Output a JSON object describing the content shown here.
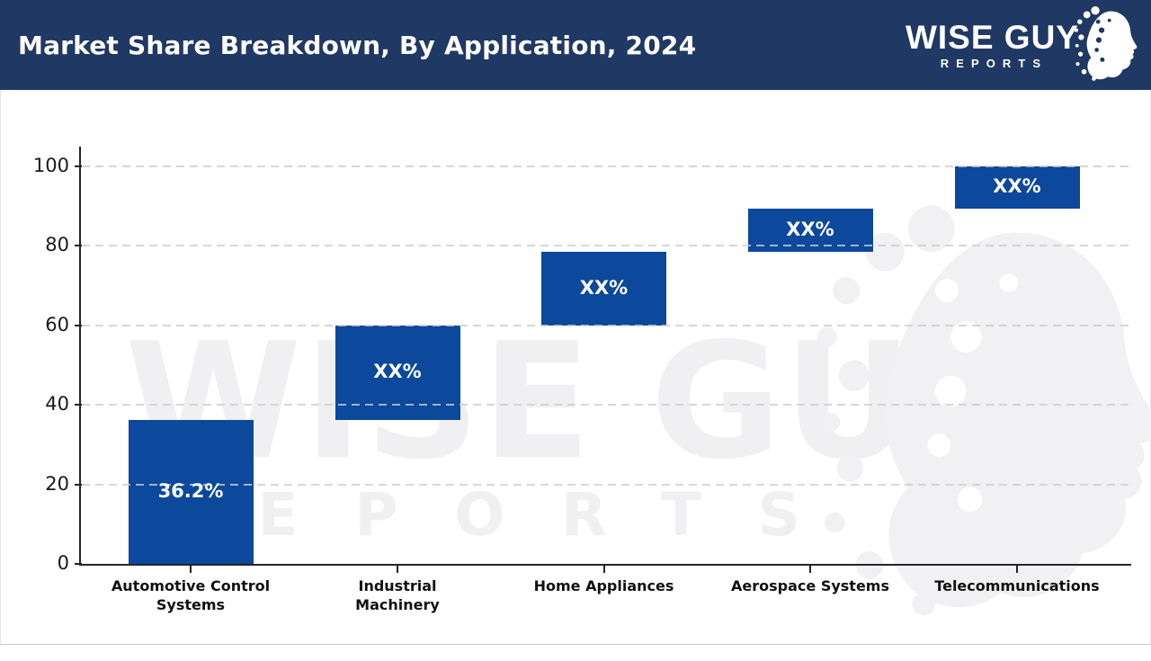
{
  "header": {
    "title": "Market Share Breakdown, By Application, 2024",
    "logo": {
      "name_line": "WISE GUY",
      "sub_line": "REPORTS"
    }
  },
  "watermark": {
    "line1": "WISE GUY",
    "line2": "REPORTS"
  },
  "chart_data": {
    "type": "bar",
    "variant": "waterfall",
    "title": "Market Share Breakdown, By Application, 2024",
    "categories": [
      "Automotive Control Systems",
      "Industrial Machinery",
      "Home Appliances",
      "Aerospace Systems",
      "Telecommunications"
    ],
    "category_label_lines": [
      [
        "Automotive Control",
        "Systems"
      ],
      [
        "Industrial",
        "Machinery"
      ],
      [
        "Home Appliances"
      ],
      [
        "Aerospace Systems"
      ],
      [
        "Telecommunications"
      ]
    ],
    "series": [
      {
        "name": "Market share (%)",
        "segments": [
          {
            "category": "Automotive Control Systems",
            "start": 0,
            "end": 36.2,
            "label": "36.2%"
          },
          {
            "category": "Industrial Machinery",
            "start": 36.2,
            "end": 60.0,
            "label": "XX%"
          },
          {
            "category": "Home Appliances",
            "start": 60.0,
            "end": 78.6,
            "label": "XX%"
          },
          {
            "category": "Aerospace Systems",
            "start": 78.6,
            "end": 89.4,
            "label": "XX%"
          },
          {
            "category": "Telecommunications",
            "start": 89.4,
            "end": 100.0,
            "label": "XX%"
          }
        ]
      }
    ],
    "xlabel": "",
    "ylabel": "",
    "yticks": [
      0,
      20,
      40,
      60,
      80,
      100
    ],
    "ylim": [
      0,
      105
    ],
    "grid": "horizontal-dashed",
    "legend": "none",
    "bar_color": "#0c489c",
    "bar_label_color": "#ffffff"
  },
  "colors": {
    "header_bg": "#1f3864",
    "bar": "#0c489c",
    "grid": "#cdcdcd",
    "axis": "#262626",
    "watermark": "#f0f0f2"
  }
}
